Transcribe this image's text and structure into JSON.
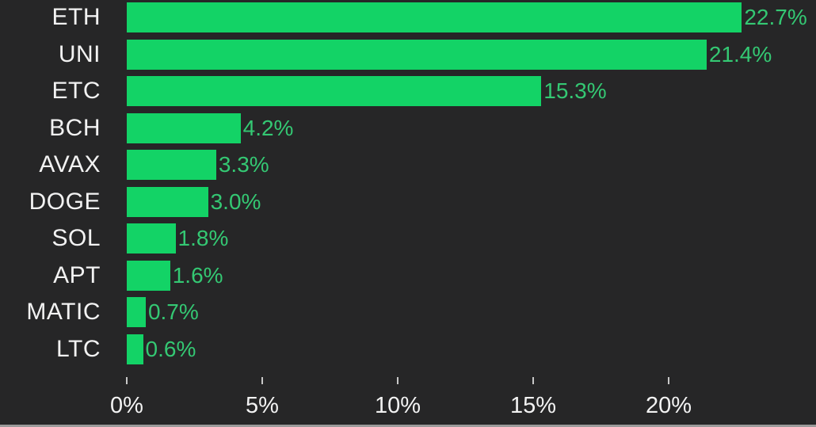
{
  "chart_data": {
    "type": "bar",
    "orientation": "horizontal",
    "title": "",
    "xlabel": "",
    "ylabel": "",
    "categories": [
      "ETH",
      "UNI",
      "ETC",
      "BCH",
      "AVAX",
      "DOGE",
      "SOL",
      "APT",
      "MATIC",
      "LTC"
    ],
    "values": [
      22.7,
      21.4,
      15.3,
      4.2,
      3.3,
      3.0,
      1.8,
      1.6,
      0.7,
      0.6
    ],
    "value_labels": [
      "22.7%",
      "21.4%",
      "15.3%",
      "4.2%",
      "3.3%",
      "3.0%",
      "1.8%",
      "1.6%",
      "0.7%",
      "0.6%"
    ],
    "x_ticks": [
      {
        "value": 0,
        "label": "0%"
      },
      {
        "value": 5,
        "label": "5%"
      },
      {
        "value": 10,
        "label": "10%"
      },
      {
        "value": 15,
        "label": "15%"
      },
      {
        "value": 20,
        "label": "20%"
      }
    ],
    "xlim": [
      0,
      25.4
    ],
    "grid": false,
    "legend": false,
    "colors": {
      "background": "#262627",
      "bar": "#13d366",
      "value_label": "#34c873",
      "category_label": "#f2f2f2",
      "tick": "#c8c8c8"
    }
  }
}
